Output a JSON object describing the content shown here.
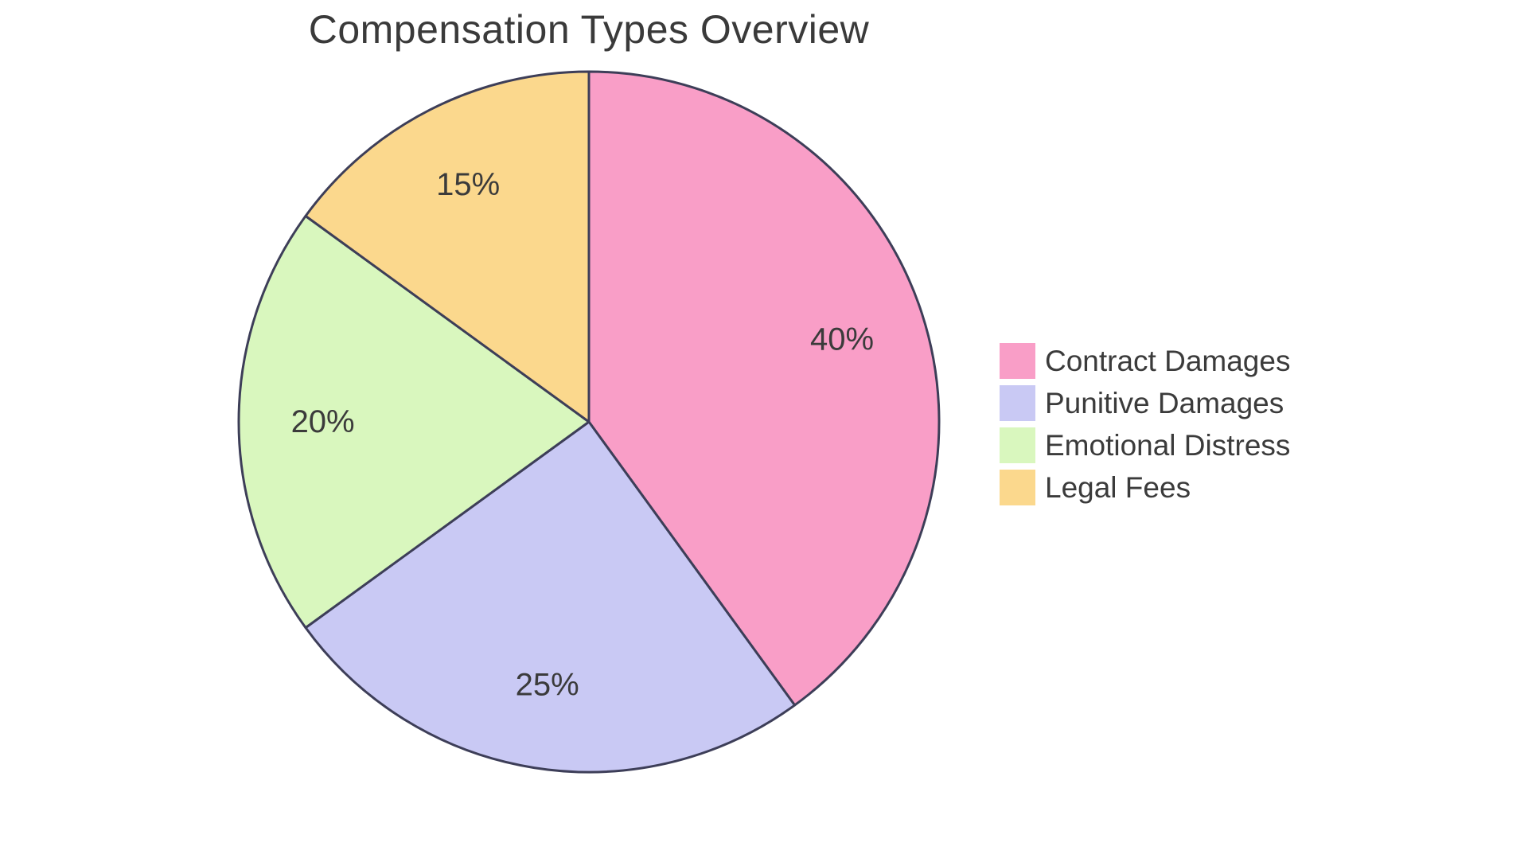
{
  "chart_data": {
    "type": "pie",
    "title": "Compensation Types Overview",
    "categories": [
      "Contract Damages",
      "Punitive Damages",
      "Emotional Distress",
      "Legal Fees"
    ],
    "values": [
      40,
      25,
      20,
      15
    ],
    "slice_labels": [
      "40%",
      "25%",
      "20%",
      "15%"
    ],
    "colors": [
      "#F99EC7",
      "#C9C9F4",
      "#D9F7BE",
      "#FBD88D"
    ],
    "outline_color": "#3D3E58",
    "label_color": "#3B3B3B",
    "title_color": "#3A3A3A",
    "legend_text_color": "#3B3B3B",
    "start_angle": "top",
    "direction": "clockwise",
    "labels_inside": true,
    "legend_position": "right",
    "background": "#FFFFFF"
  }
}
